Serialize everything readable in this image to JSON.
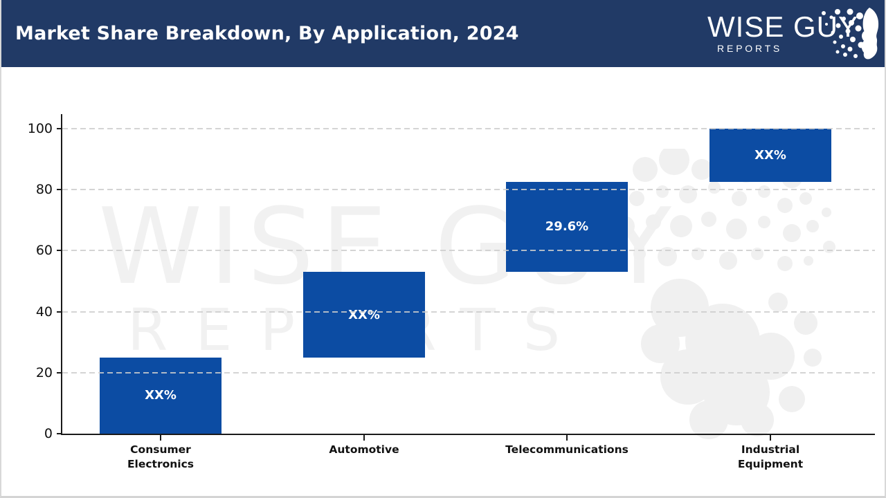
{
  "header": {
    "title": "Market Share Breakdown, By Application, 2024",
    "bg_color": "#213a66",
    "logo": {
      "line1": "WISE GUY",
      "line2": "R E P O R T S"
    }
  },
  "watermark": {
    "line1": "WISE GUY",
    "line2": "REPORTS",
    "color": "#f1f1f1"
  },
  "chart_data": {
    "type": "bar",
    "subtype": "waterfall-floating-bars",
    "title": "Market Share Breakdown, By Application, 2024",
    "categories": [
      "Consumer\nElectronics",
      "Automotive",
      "Telecommunications",
      "Industrial\nEquipment"
    ],
    "segments": [
      {
        "category": "Consumer Electronics",
        "start": 0,
        "end": 25,
        "label": "XX%"
      },
      {
        "category": "Automotive",
        "start": 25,
        "end": 53,
        "label": "XX%"
      },
      {
        "category": "Telecommunications",
        "start": 53,
        "end": 82.6,
        "label": "29.6%"
      },
      {
        "category": "Industrial Equipment",
        "start": 82.6,
        "end": 100,
        "label": "XX%"
      }
    ],
    "ylabel": "",
    "xlabel": "",
    "ylim": [
      0,
      105
    ],
    "yticks": [
      0,
      20,
      40,
      60,
      80,
      100
    ],
    "bar_color": "#0c4ca3",
    "grid": "horizontal-dashed",
    "legend": "none"
  }
}
